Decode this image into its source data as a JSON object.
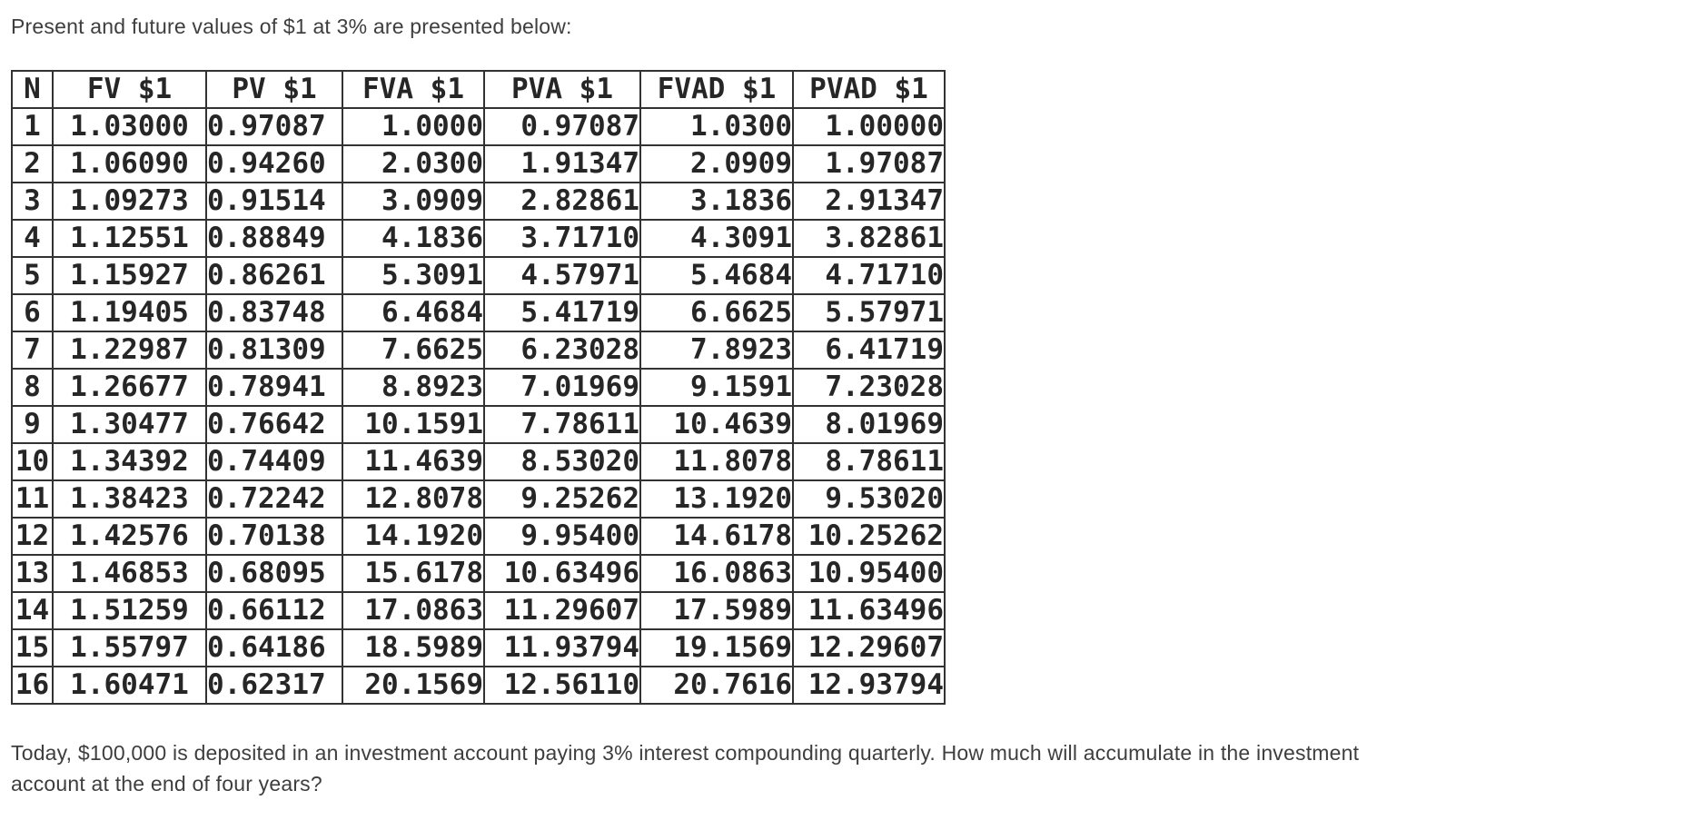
{
  "intro": {
    "text": "Present and future values of $1 at 3% are presented below:"
  },
  "table": {
    "columns": [
      "N",
      "FV $1",
      "PV $1",
      "FVA $1",
      "PVA $1",
      "FVAD $1",
      "PVAD $1"
    ],
    "rows": [
      [
        "1",
        "1.03000",
        "0.97087",
        "1.0000",
        "0.97087",
        "1.0300",
        "1.00000"
      ],
      [
        "2",
        "1.06090",
        "0.94260",
        "2.0300",
        "1.91347",
        "2.0909",
        "1.97087"
      ],
      [
        "3",
        "1.09273",
        "0.91514",
        "3.0909",
        "2.82861",
        "3.1836",
        "2.91347"
      ],
      [
        "4",
        "1.12551",
        "0.88849",
        "4.1836",
        "3.71710",
        "4.3091",
        "3.82861"
      ],
      [
        "5",
        "1.15927",
        "0.86261",
        "5.3091",
        "4.57971",
        "5.4684",
        "4.71710"
      ],
      [
        "6",
        "1.19405",
        "0.83748",
        "6.4684",
        "5.41719",
        "6.6625",
        "5.57971"
      ],
      [
        "7",
        "1.22987",
        "0.81309",
        "7.6625",
        "6.23028",
        "7.8923",
        "6.41719"
      ],
      [
        "8",
        "1.26677",
        "0.78941",
        "8.8923",
        "7.01969",
        "9.1591",
        "7.23028"
      ],
      [
        "9",
        "1.30477",
        "0.76642",
        "10.1591",
        "7.78611",
        "10.4639",
        "8.01969"
      ],
      [
        "10",
        "1.34392",
        "0.74409",
        "11.4639",
        "8.53020",
        "11.8078",
        "8.78611"
      ],
      [
        "11",
        "1.38423",
        "0.72242",
        "12.8078",
        "9.25262",
        "13.1920",
        "9.53020"
      ],
      [
        "12",
        "1.42576",
        "0.70138",
        "14.1920",
        "9.95400",
        "14.6178",
        "10.25262"
      ],
      [
        "13",
        "1.46853",
        "0.68095",
        "15.6178",
        "10.63496",
        "16.0863",
        "10.95400"
      ],
      [
        "14",
        "1.51259",
        "0.66112",
        "17.0863",
        "11.29607",
        "17.5989",
        "11.63496"
      ],
      [
        "15",
        "1.55797",
        "0.64186",
        "18.5989",
        "11.93794",
        "19.1569",
        "12.29607"
      ],
      [
        "16",
        "1.60471",
        "0.62317",
        "20.1569",
        "12.56110",
        "20.7616",
        "12.93794"
      ]
    ]
  },
  "question": {
    "line1": "Today, $100,000 is deposited in an investment account paying 3% interest compounding quarterly. How much will accumulate in the investment",
    "line2": "account at the end of four years?"
  },
  "colors": {
    "background": "#ffffff",
    "paragraph_text": "#3e3e3e",
    "table_text": "#262626",
    "table_border": "#323232"
  }
}
